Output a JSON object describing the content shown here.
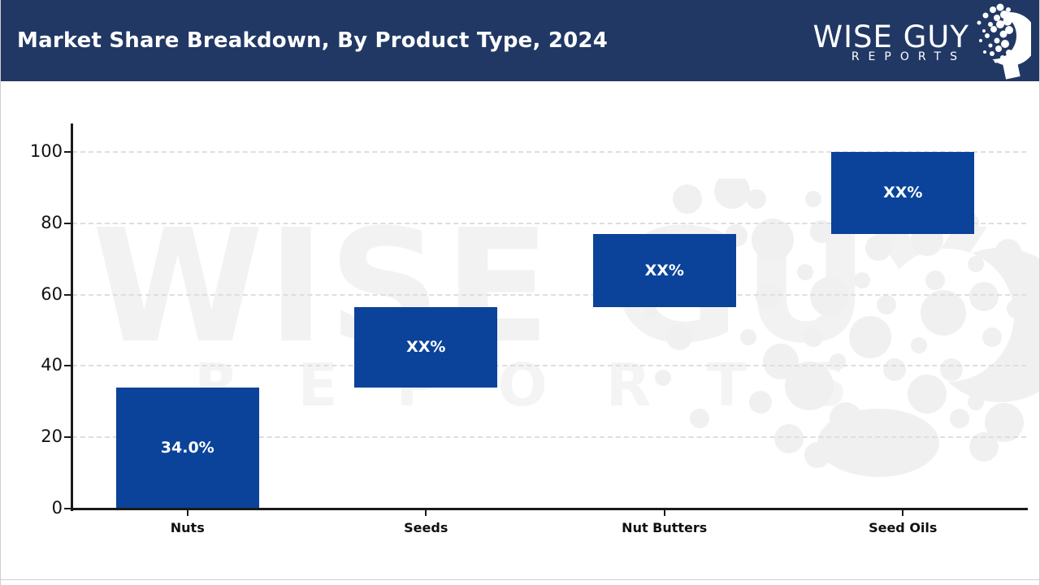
{
  "header": {
    "title": "Market Share Breakdown, By Product Type, 2024",
    "logo": {
      "line1": "WISE GUY",
      "line2": "REPORTS"
    }
  },
  "watermark": {
    "line1": "WISE GUY",
    "line2": "REPORTS"
  },
  "chart_data": {
    "type": "bar",
    "subtype": "waterfall",
    "title": "Market Share Breakdown, By Product Type, 2024",
    "categories": [
      "Nuts",
      "Seeds",
      "Nut Butters",
      "Seed Oils"
    ],
    "segments": [
      {
        "category": "Nuts",
        "start": 0,
        "end": 34,
        "label": "34.0%"
      },
      {
        "category": "Seeds",
        "start": 34,
        "end": 56.6,
        "label": "XX%"
      },
      {
        "category": "Nut Butters",
        "start": 56.6,
        "end": 77.1,
        "label": "XX%"
      },
      {
        "category": "Seed Oils",
        "start": 77.1,
        "end": 100,
        "label": "XX%"
      }
    ],
    "yticks": [
      0,
      20,
      40,
      60,
      80,
      100
    ],
    "ylim": [
      0,
      107
    ],
    "xlabel": "",
    "ylabel": "",
    "grid": "horizontal-dashed",
    "legend": "none",
    "colors": {
      "bar": "#0a4399",
      "bar_label": "#ffffff",
      "axis": "#1a1a1a",
      "gridline": "#dedede",
      "header_bg": "#213864",
      "title_text": "#ffffff",
      "watermark": "#f2f2f2"
    }
  }
}
